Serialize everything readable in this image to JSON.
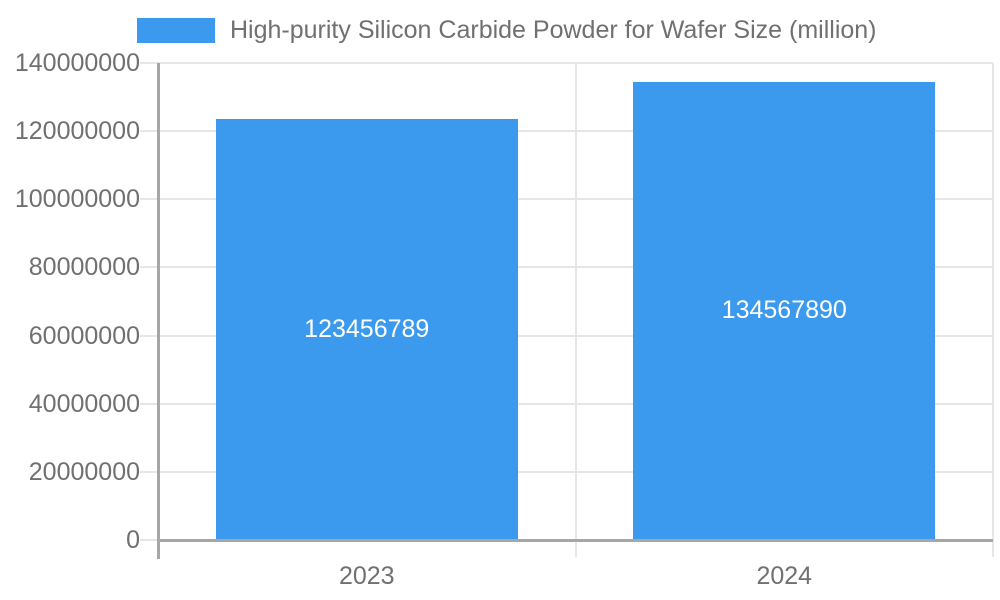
{
  "legend": {
    "series_label": "High-purity Silicon Carbide Powder for Wafer Size (million)"
  },
  "chart_data": {
    "type": "bar",
    "title": "High-purity Silicon Carbide Powder for Wafer Size (million)",
    "categories": [
      "2023",
      "2024"
    ],
    "series": [
      {
        "name": "High-purity Silicon Carbide Powder for Wafer Size (million)",
        "values": [
          123456789,
          134567890
        ]
      }
    ],
    "bar_labels": [
      "123456789",
      "134567890"
    ],
    "xlabel": "",
    "ylabel": "",
    "ylim": [
      0,
      140000000
    ],
    "yticks": [
      0,
      20000000,
      40000000,
      60000000,
      80000000,
      100000000,
      120000000,
      140000000
    ],
    "ytick_labels": [
      "0",
      "20000000",
      "40000000",
      "60000000",
      "80000000",
      "100000000",
      "120000000",
      "140000000"
    ],
    "grid": true,
    "legend_position": "top",
    "colors": {
      "bar": "#3B99EE",
      "bar_label_text": "#FFFFFF",
      "axis_text": "#707070",
      "axis_line": "#A6A6A6",
      "gridline": "#E6E6E6",
      "background": "#FFFFFF"
    }
  }
}
